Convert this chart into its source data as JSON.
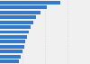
{
  "values": [
    67,
    52,
    45,
    40,
    37,
    34,
    32,
    30,
    28,
    27,
    25,
    23,
    21
  ],
  "bar_color": "#3579c8",
  "background_color": "#f0f0f0",
  "right_panel_color": "#e8e8e8",
  "xlim": [
    0,
    100
  ],
  "bar_height": 0.72,
  "grid_color": "#cccccc"
}
